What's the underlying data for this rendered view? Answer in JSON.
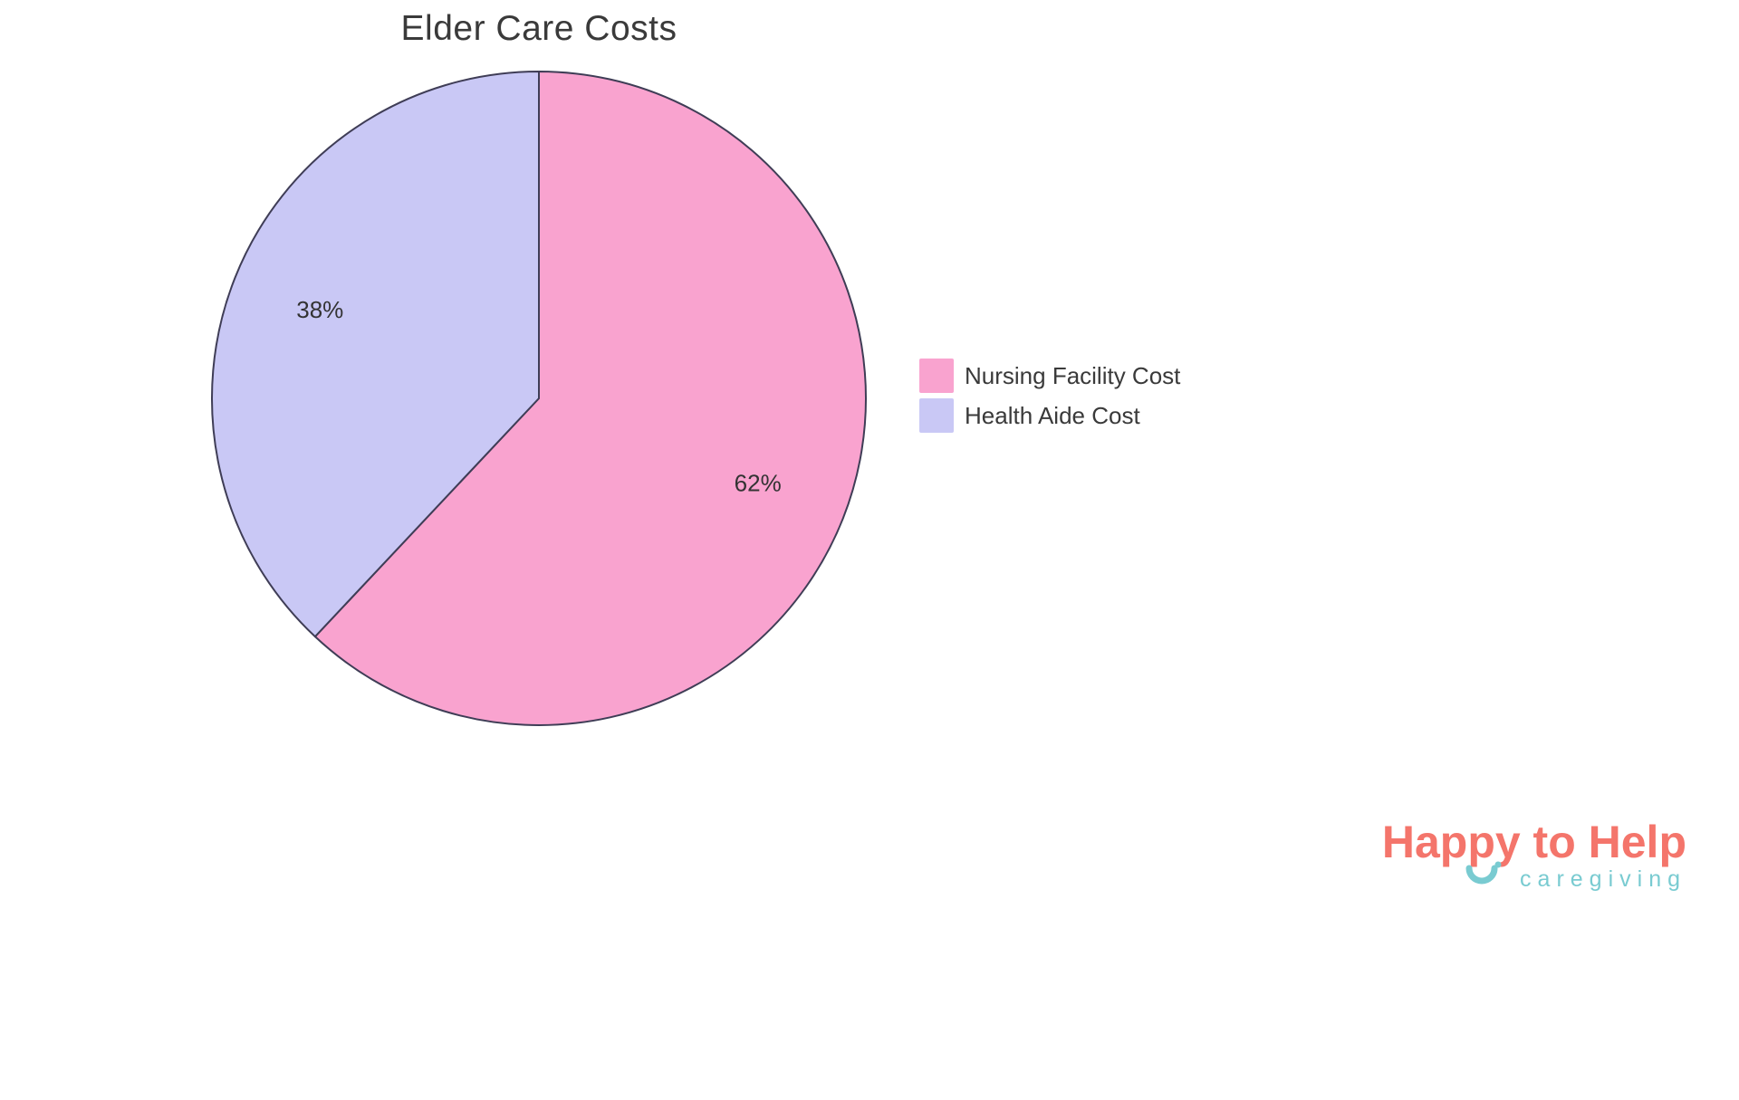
{
  "chart_data": {
    "type": "pie",
    "title": "Elder Care Costs",
    "labels": [
      "Nursing Facility Cost",
      "Health Aide Cost"
    ],
    "values": [
      62,
      38
    ],
    "percent_labels": [
      "62%",
      "38%"
    ],
    "colors": [
      "#F9A3CF",
      "#C9C8F5"
    ],
    "slice_stroke_color": "#3f3d56",
    "label_text_color": "#333333",
    "start_angle_deg": -90,
    "direction": "clockwise",
    "legend_position": "right"
  },
  "branding": {
    "logo_text": "Happy to Help",
    "logo_subtext": "caregiving",
    "logo_color": "#F4756B",
    "subtext_color": "#79CBD1",
    "smiley_icon": "smile-icon"
  }
}
